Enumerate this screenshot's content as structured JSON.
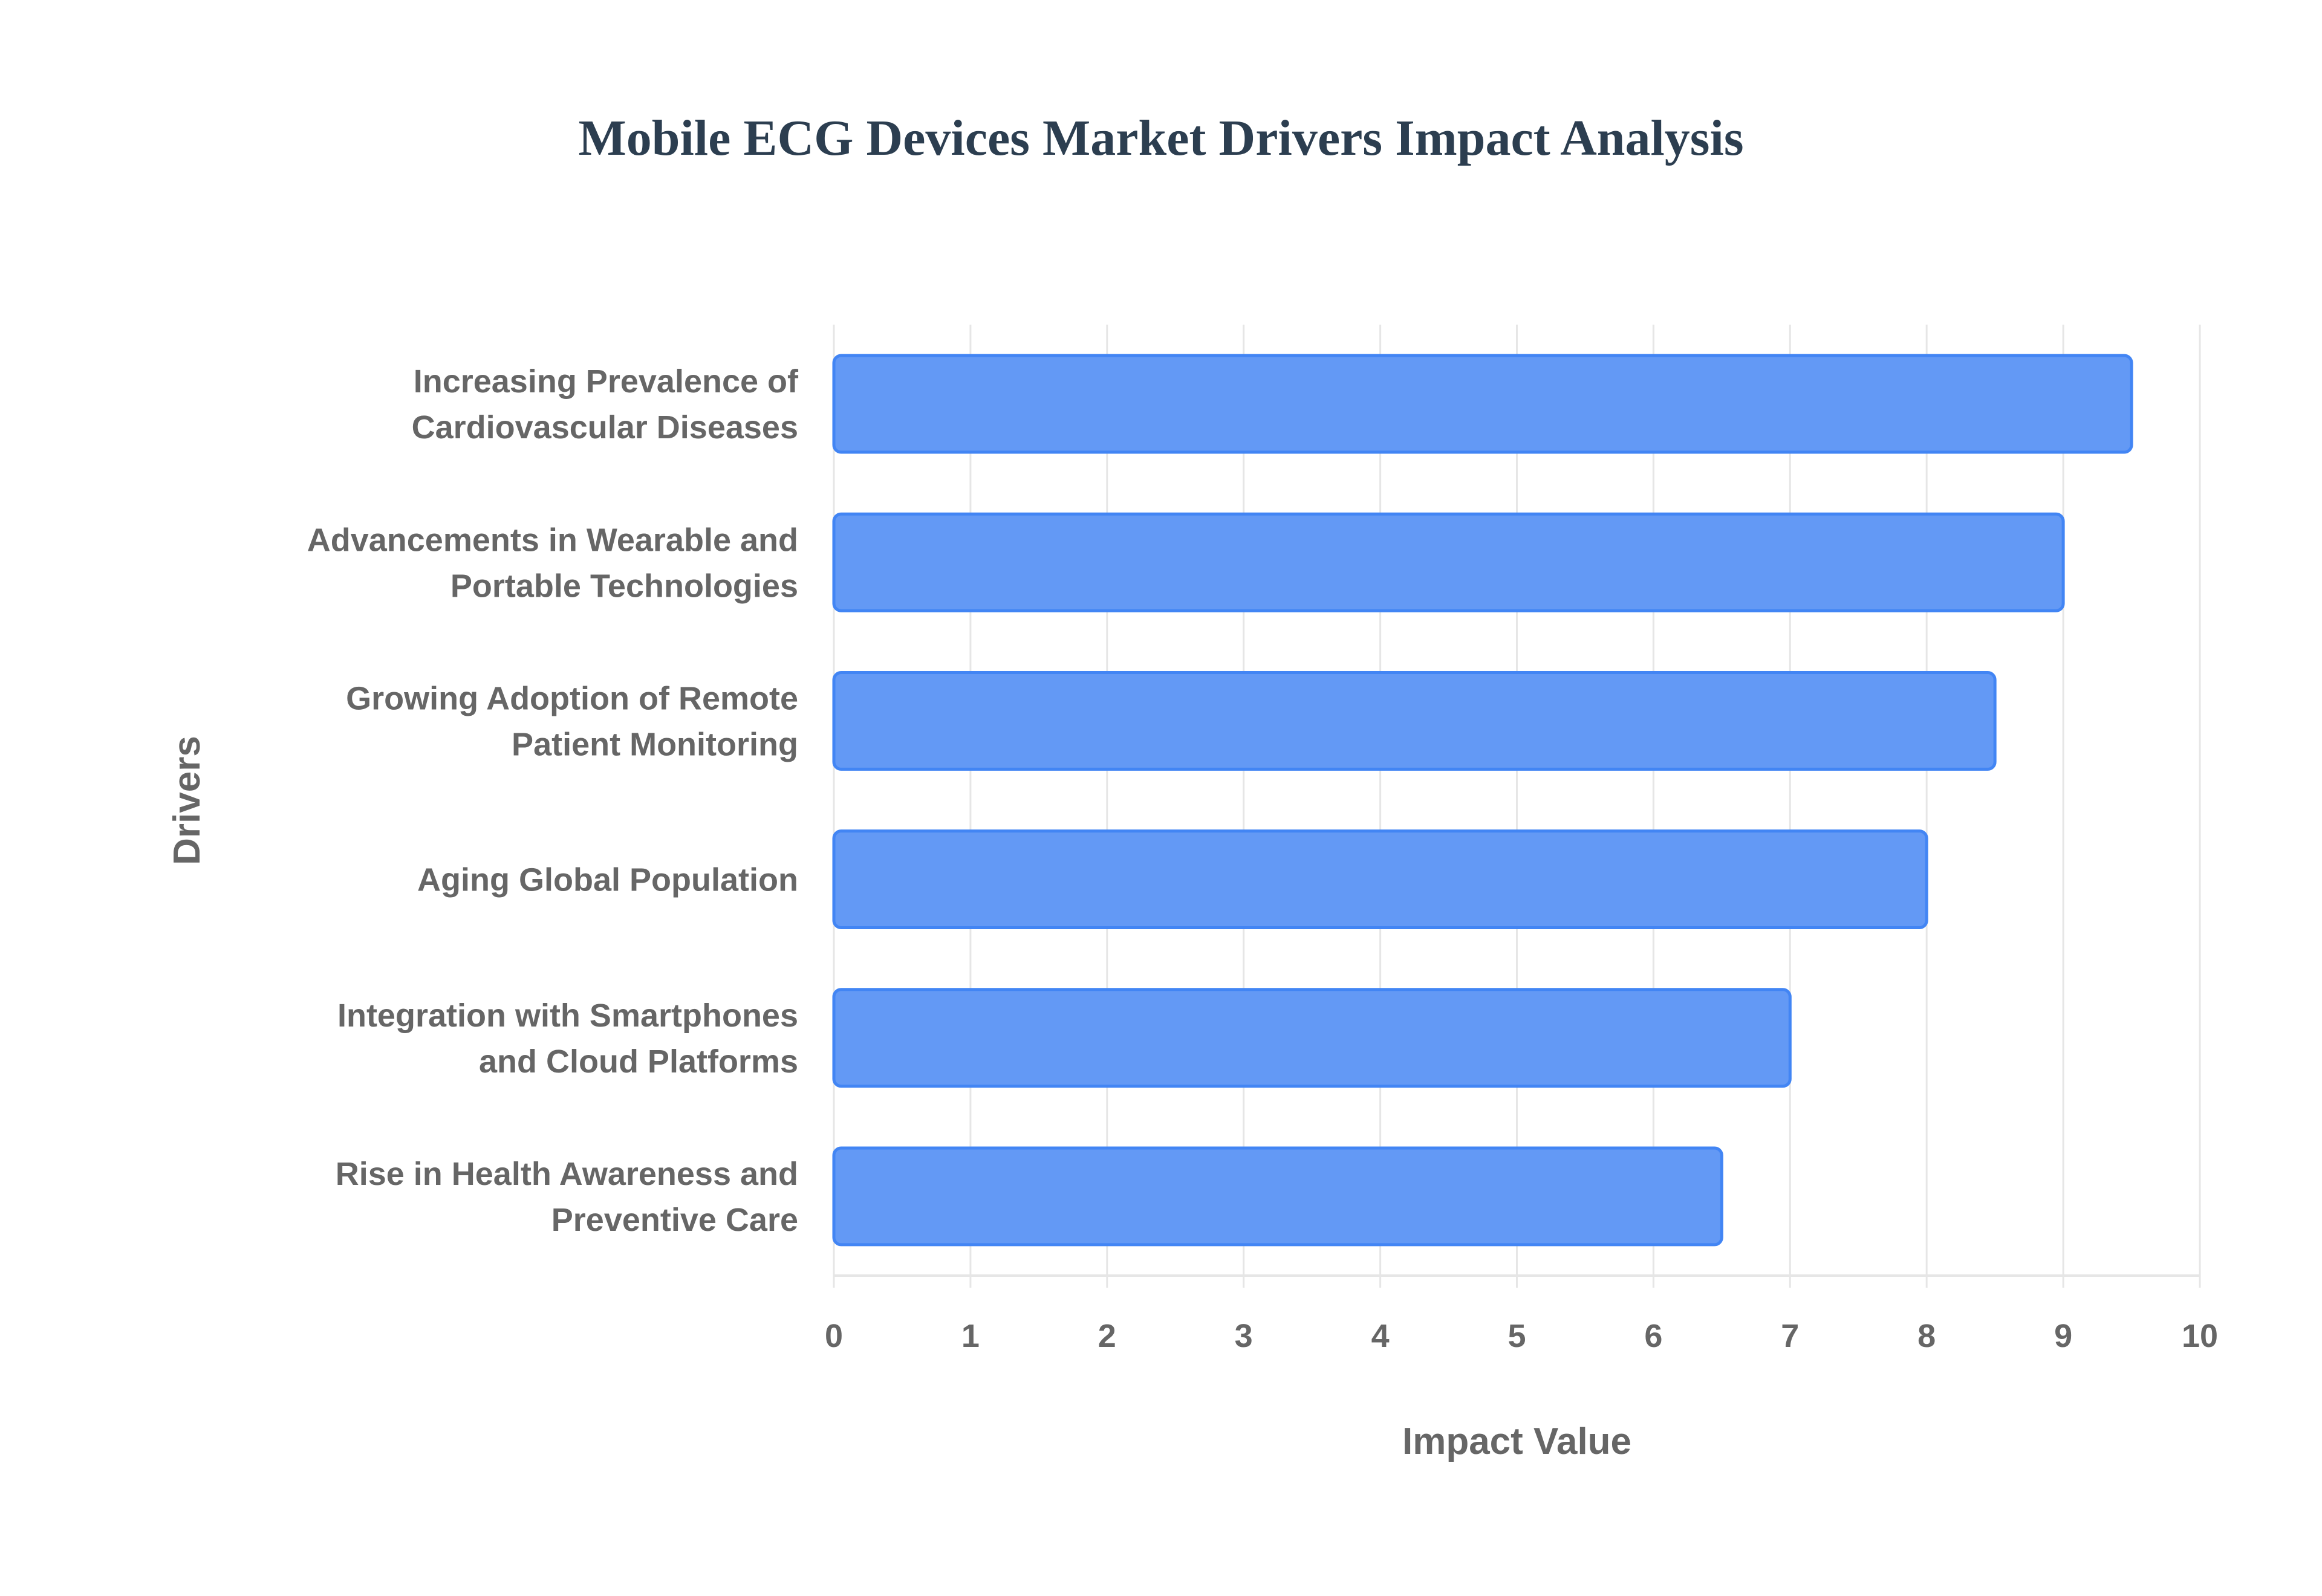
{
  "chart_data": {
    "type": "bar",
    "orientation": "horizontal",
    "title": "Mobile ECG Devices Market Drivers Impact Analysis",
    "xlabel": "Impact Value",
    "ylabel": "Drivers",
    "categories": [
      [
        "Increasing Prevalence of",
        "Cardiovascular Diseases"
      ],
      [
        "Advancements in Wearable and",
        "Portable Technologies"
      ],
      [
        "Growing Adoption of Remote",
        "Patient Monitoring"
      ],
      [
        "Aging Global Population"
      ],
      [
        "Integration with Smartphones",
        "and Cloud Platforms"
      ],
      [
        "Rise in Health Awareness and",
        "Preventive Care"
      ]
    ],
    "values": [
      9.5,
      9,
      8.5,
      8,
      7,
      6.5
    ],
    "xlim": [
      0,
      10
    ],
    "xticks": [
      "0",
      "1",
      "2",
      "3",
      "4",
      "5",
      "6",
      "7",
      "8",
      "9",
      "10"
    ],
    "grid": true,
    "legend": "none",
    "colors": {
      "bar_fill": "#6399f5",
      "bar_border": "#4285f4",
      "title": "#2c3e50",
      "text": "#666666",
      "grid": "#e6e6e6"
    }
  }
}
